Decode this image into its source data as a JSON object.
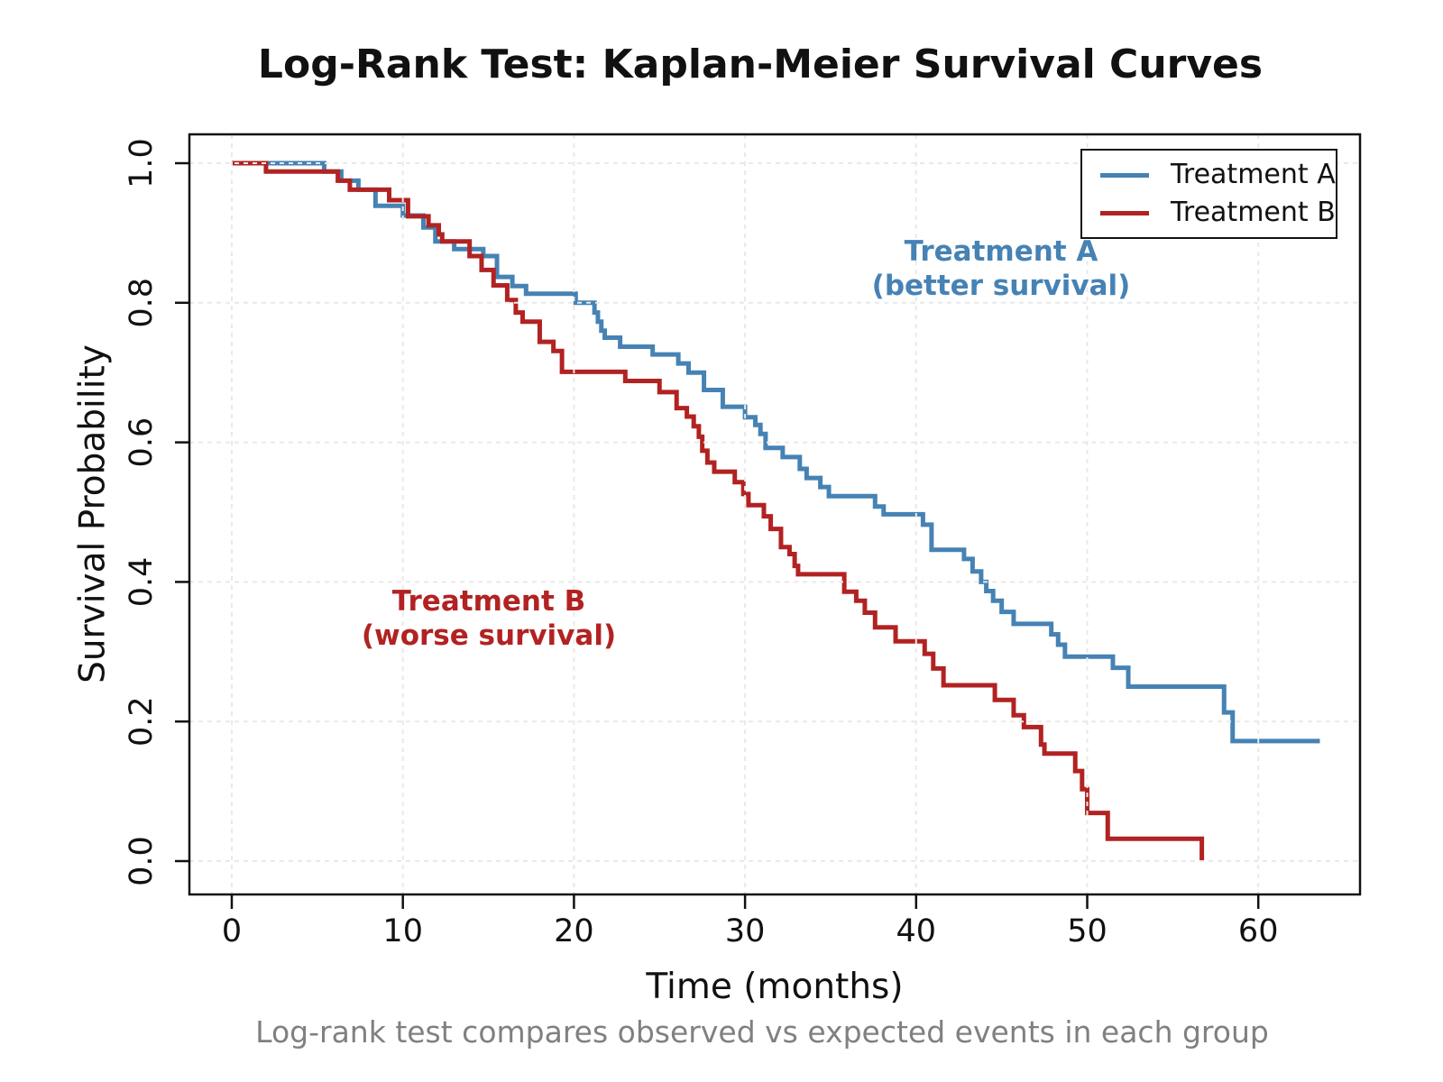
{
  "chart_data": {
    "type": "line",
    "subtype": "kaplan-meier-step",
    "title": "Log-Rank Test: Kaplan-Meier Survival Curves",
    "xlabel": "Time (months)",
    "ylabel": "Survival Probability",
    "footer": "Log-rank test compares observed vs expected events in each group",
    "grid": true,
    "legend": {
      "position": "upper right"
    },
    "xlim": [
      -2.5,
      66
    ],
    "ylim": [
      -0.05,
      1.05
    ],
    "x_ticks": [
      {
        "v": 0,
        "label": "0"
      },
      {
        "v": 10,
        "label": "10"
      },
      {
        "v": 20,
        "label": "20"
      },
      {
        "v": 30,
        "label": "30"
      },
      {
        "v": 40,
        "label": "40"
      },
      {
        "v": 50,
        "label": "50"
      },
      {
        "v": 60,
        "label": "60"
      }
    ],
    "y_ticks": [
      {
        "v": 0.0,
        "label": "0.0"
      },
      {
        "v": 0.2,
        "label": "0.2"
      },
      {
        "v": 0.4,
        "label": "0.4"
      },
      {
        "v": 0.6,
        "label": "0.6"
      },
      {
        "v": 0.8,
        "label": "0.8"
      },
      {
        "v": 1.0,
        "label": "1.0"
      }
    ],
    "colors": {
      "treatment_a": "#4682B4",
      "treatment_b": "#B22222",
      "grid": "#e9e9e9",
      "footer_gray": "#808080"
    },
    "annotations": {
      "treatment_a": {
        "line1": "Treatment A",
        "line2": "(better survival)",
        "color": "#4682B4"
      },
      "treatment_b": {
        "line1": "Treatment B",
        "line2": "(worse survival)",
        "color": "#B22222"
      }
    },
    "series": [
      {
        "name": "Treatment A",
        "color": "#4682B4",
        "points": [
          [
            0,
            1.0
          ],
          [
            5.4,
            0.988
          ],
          [
            6.4,
            0.975
          ],
          [
            7.4,
            0.962
          ],
          [
            8.4,
            0.939
          ],
          [
            10.0,
            0.925
          ],
          [
            11.2,
            0.908
          ],
          [
            11.9,
            0.888
          ],
          [
            13.0,
            0.877
          ],
          [
            14.7,
            0.867
          ],
          [
            15.5,
            0.837
          ],
          [
            16.4,
            0.824
          ],
          [
            17.2,
            0.813
          ],
          [
            20.1,
            0.8
          ],
          [
            21.2,
            0.786
          ],
          [
            21.4,
            0.773
          ],
          [
            21.6,
            0.76
          ],
          [
            21.8,
            0.75
          ],
          [
            22.7,
            0.737
          ],
          [
            24.6,
            0.726
          ],
          [
            26.1,
            0.713
          ],
          [
            26.7,
            0.7
          ],
          [
            27.6,
            0.675
          ],
          [
            28.7,
            0.651
          ],
          [
            30.0,
            0.636
          ],
          [
            30.6,
            0.625
          ],
          [
            30.9,
            0.612
          ],
          [
            31.2,
            0.592
          ],
          [
            32.2,
            0.579
          ],
          [
            33.2,
            0.562
          ],
          [
            33.6,
            0.549
          ],
          [
            34.4,
            0.536
          ],
          [
            34.9,
            0.523
          ],
          [
            37.6,
            0.508
          ],
          [
            38.1,
            0.497
          ],
          [
            40.4,
            0.482
          ],
          [
            40.9,
            0.446
          ],
          [
            42.8,
            0.433
          ],
          [
            43.3,
            0.415
          ],
          [
            43.8,
            0.4
          ],
          [
            44.1,
            0.387
          ],
          [
            44.5,
            0.373
          ],
          [
            45.0,
            0.357
          ],
          [
            45.7,
            0.34
          ],
          [
            47.9,
            0.325
          ],
          [
            48.3,
            0.31
          ],
          [
            48.7,
            0.293
          ],
          [
            51.5,
            0.277
          ],
          [
            52.4,
            0.25
          ],
          [
            58.0,
            0.213
          ],
          [
            58.5,
            0.172
          ],
          [
            63.6,
            0.172
          ]
        ]
      },
      {
        "name": "Treatment B",
        "color": "#B22222",
        "points": [
          [
            0,
            1.0
          ],
          [
            2.0,
            0.988
          ],
          [
            6.2,
            0.975
          ],
          [
            6.9,
            0.962
          ],
          [
            9.2,
            0.947
          ],
          [
            10.3,
            0.924
          ],
          [
            11.5,
            0.911
          ],
          [
            12.1,
            0.898
          ],
          [
            12.3,
            0.888
          ],
          [
            13.9,
            0.867
          ],
          [
            14.6,
            0.847
          ],
          [
            15.3,
            0.825
          ],
          [
            16.1,
            0.804
          ],
          [
            16.6,
            0.786
          ],
          [
            17.0,
            0.773
          ],
          [
            18.0,
            0.744
          ],
          [
            18.8,
            0.731
          ],
          [
            19.3,
            0.701
          ],
          [
            23.0,
            0.688
          ],
          [
            25.0,
            0.672
          ],
          [
            26.0,
            0.649
          ],
          [
            26.6,
            0.637
          ],
          [
            27.0,
            0.623
          ],
          [
            27.3,
            0.608
          ],
          [
            27.5,
            0.588
          ],
          [
            27.8,
            0.571
          ],
          [
            28.2,
            0.558
          ],
          [
            29.4,
            0.543
          ],
          [
            29.9,
            0.526
          ],
          [
            30.2,
            0.51
          ],
          [
            31.1,
            0.494
          ],
          [
            31.5,
            0.476
          ],
          [
            32.1,
            0.45
          ],
          [
            32.6,
            0.44
          ],
          [
            32.9,
            0.423
          ],
          [
            33.1,
            0.411
          ],
          [
            35.8,
            0.386
          ],
          [
            36.5,
            0.373
          ],
          [
            37.0,
            0.356
          ],
          [
            37.6,
            0.335
          ],
          [
            38.8,
            0.315
          ],
          [
            40.5,
            0.297
          ],
          [
            41.0,
            0.276
          ],
          [
            41.6,
            0.252
          ],
          [
            44.6,
            0.231
          ],
          [
            45.7,
            0.209
          ],
          [
            46.3,
            0.192
          ],
          [
            47.3,
            0.167
          ],
          [
            47.5,
            0.154
          ],
          [
            49.3,
            0.129
          ],
          [
            49.7,
            0.103
          ],
          [
            50.0,
            0.069
          ],
          [
            51.2,
            0.032
          ],
          [
            56.7,
            0.0
          ]
        ]
      }
    ]
  }
}
